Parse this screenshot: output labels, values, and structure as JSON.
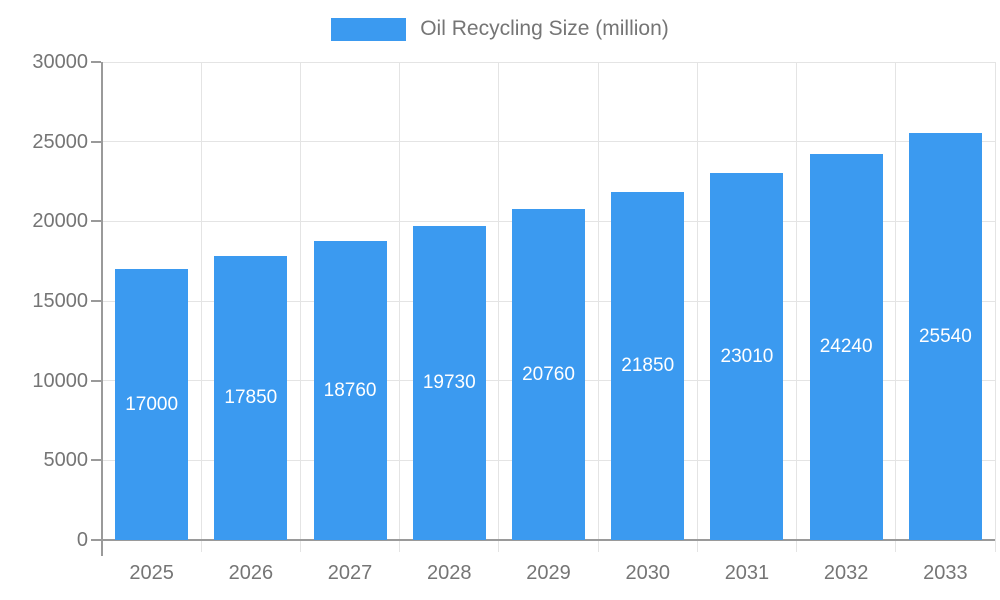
{
  "legend": {
    "label": "Oil Recycling Size (million)"
  },
  "chart_data": {
    "type": "bar",
    "title": "Oil Recycling Size (million)",
    "categories": [
      "2025",
      "2026",
      "2027",
      "2028",
      "2029",
      "2030",
      "2031",
      "2032",
      "2033"
    ],
    "values": [
      17000,
      17850,
      18760,
      19730,
      20760,
      21850,
      23010,
      24240,
      25540
    ],
    "series_name": "Oil Recycling Size (million)",
    "xlabel": "",
    "ylabel": "",
    "ylim": [
      0,
      30000
    ],
    "ytick_step": 5000,
    "ytick_labels": [
      "0",
      "5000",
      "10000",
      "15000",
      "20000",
      "25000",
      "30000"
    ],
    "grid": true,
    "legend_position": "top",
    "bar_labels_inside": true,
    "colors": {
      "bar": "#3b9af0",
      "bar_label": "#ffffff",
      "grid": "#e4e4e4",
      "axis": "#9a9a9a",
      "text": "#757575"
    }
  }
}
